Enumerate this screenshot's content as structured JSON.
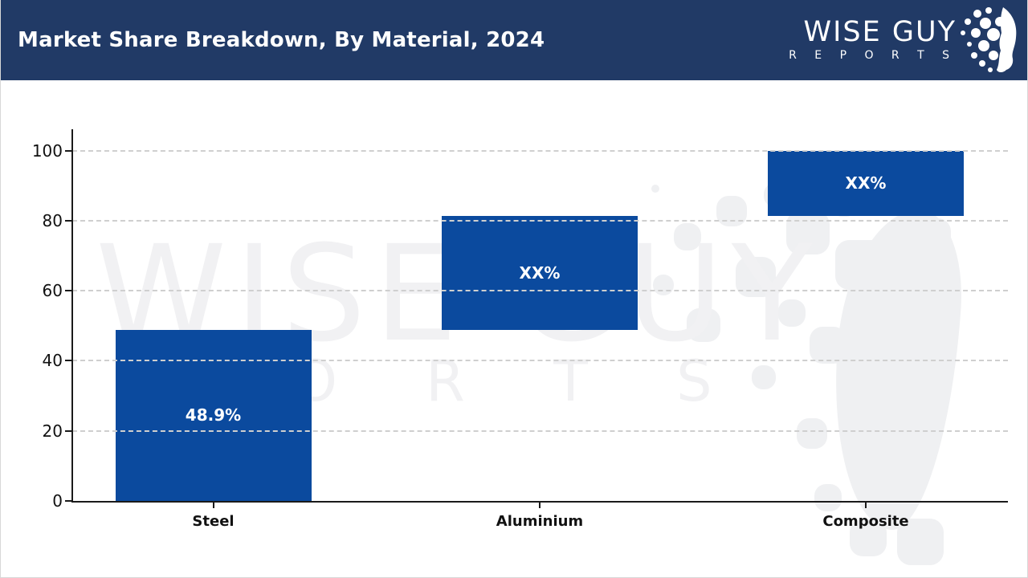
{
  "header": {
    "title": "Market Share Breakdown, By Material, 2024",
    "background": "#213a66",
    "logo": {
      "line1": "WISE GUY",
      "line2": "R E P O R T S"
    }
  },
  "watermark": {
    "line1": "WISE GUY",
    "line2": "R O R T S",
    "note": "large light-gray brand watermark behind plot"
  },
  "chart_data": {
    "type": "bar",
    "subtype": "waterfall",
    "title": "Market Share Breakdown, By Material, 2024",
    "xlabel": "",
    "ylabel": "",
    "categories": [
      "Steel",
      "Aluminium",
      "Composite"
    ],
    "segments": [
      {
        "category": "Steel",
        "start": 0,
        "end": 48.9,
        "label": "48.9%"
      },
      {
        "category": "Aluminium",
        "start": 48.9,
        "end": 81.4,
        "label": "XX%"
      },
      {
        "category": "Composite",
        "start": 81.4,
        "end": 100,
        "label": "XX%"
      }
    ],
    "yticks": [
      0,
      20,
      40,
      60,
      80,
      100
    ],
    "ylim": [
      0,
      100
    ],
    "grid": "horizontal dashed gridlines at y ticks",
    "legend": "none",
    "bar_color": "#0b4a9e",
    "label_color": "#ffffff",
    "axis_color": "#1a1a1a"
  }
}
